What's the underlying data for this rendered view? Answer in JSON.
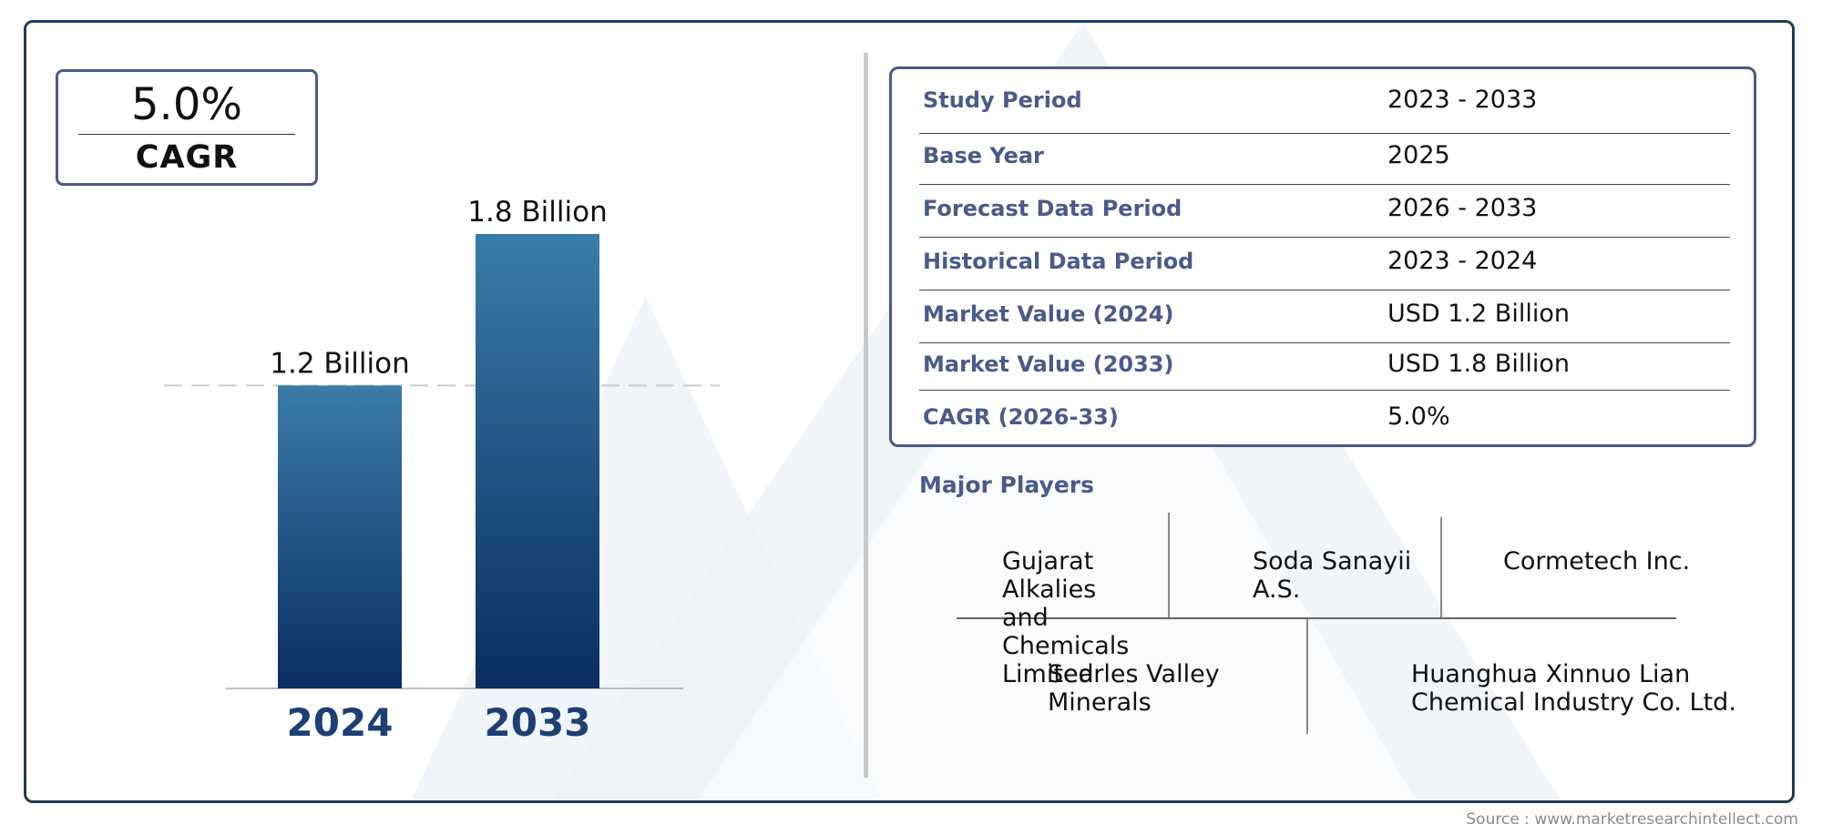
{
  "cagr_box": {
    "value": "5.0%",
    "label": "CAGR"
  },
  "chart_data": {
    "type": "bar",
    "categories": [
      "2024",
      "2033"
    ],
    "values": [
      1.2,
      1.8
    ],
    "value_labels": [
      "1.2 Billion",
      "1.8 Billion"
    ],
    "units": "Billion",
    "title": "",
    "xlabel": "",
    "ylabel": "",
    "ylim": [
      0,
      1.8
    ],
    "grid": false,
    "reference_line_at": 1.2,
    "bar_colors": [
      "#3a7ca8",
      "#0a2d62"
    ]
  },
  "info_table": {
    "rows": [
      {
        "key": "Study Period",
        "value": "2023 - 2033"
      },
      {
        "key": "Base Year",
        "value": "2025"
      },
      {
        "key": "Forecast Data Period",
        "value": "2026 - 2033"
      },
      {
        "key": "Historical Data Period",
        "value": "2023 - 2024"
      },
      {
        "key": "Market Value (2024)",
        "value": "USD 1.2 Billion"
      },
      {
        "key": "Market Value (2033)",
        "value": "USD 1.8 Billion"
      },
      {
        "key": "CAGR (2026-33)",
        "value": "5.0%"
      }
    ]
  },
  "major_players": {
    "title": "Major Players",
    "players": [
      "Gujarat Alkalies and Chemicals Limited",
      "Soda Sanayii A.S.",
      "Cormetech Inc.",
      "Searles Valley Minerals",
      "Huanghua Xinnuo Lian Chemical Industry Co. Ltd."
    ]
  },
  "source": "Source : www.marketresearchintellect.com",
  "colors": {
    "frame": "#1f3d52",
    "accent": "#4a5a8a",
    "bar_top": "#3a7ca8",
    "bar_bottom": "#0a2d62",
    "year_label": "#1e3f73"
  }
}
